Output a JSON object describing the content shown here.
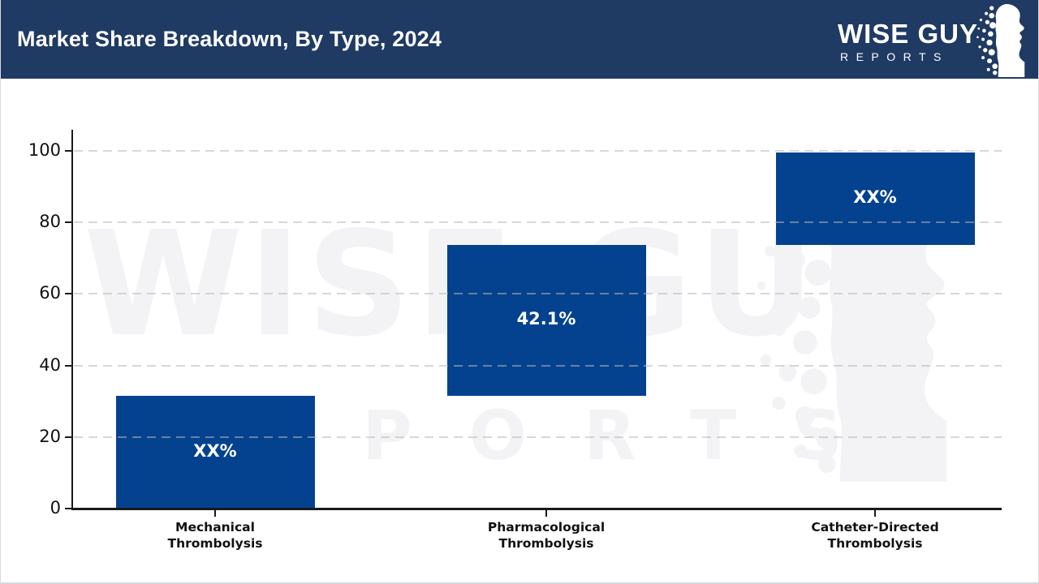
{
  "header": {
    "title": "Market Share Breakdown, By Type, 2024",
    "bg_color": "#1f3a63",
    "logo_line1": "WISE GUY",
    "logo_line2": "REPORTS"
  },
  "watermark": {
    "line1": "WISE GUY",
    "line2": "REPORTS"
  },
  "chart_data": {
    "type": "bar",
    "variant": "waterfall",
    "title": "Market Share Breakdown, By Type, 2024",
    "categories": [
      [
        "Mechanical",
        "Thrombolysis"
      ],
      [
        "Pharmacological",
        "Thrombolysis"
      ],
      [
        "Catheter-Directed",
        "Thrombolysis"
      ]
    ],
    "segments": [
      {
        "start": 0,
        "end": 31.5,
        "label": "XX%"
      },
      {
        "start": 31.5,
        "end": 73.6,
        "label": "42.1%"
      },
      {
        "start": 73.6,
        "end": 99.6,
        "label": "XX%"
      }
    ],
    "yticks": [
      0,
      20,
      40,
      60,
      80,
      100
    ],
    "ylim": [
      0,
      105
    ],
    "grid": "horizontal-dashed",
    "legend": "none",
    "xlabel": "",
    "ylabel": "",
    "colors": {
      "bar": "#04428f",
      "bar_label": "#ffffff",
      "axis": "#1a1a1a",
      "gridline": "#b7b7b7",
      "header_bg": "#1f3a63",
      "watermark": "#f3f3f5"
    }
  }
}
